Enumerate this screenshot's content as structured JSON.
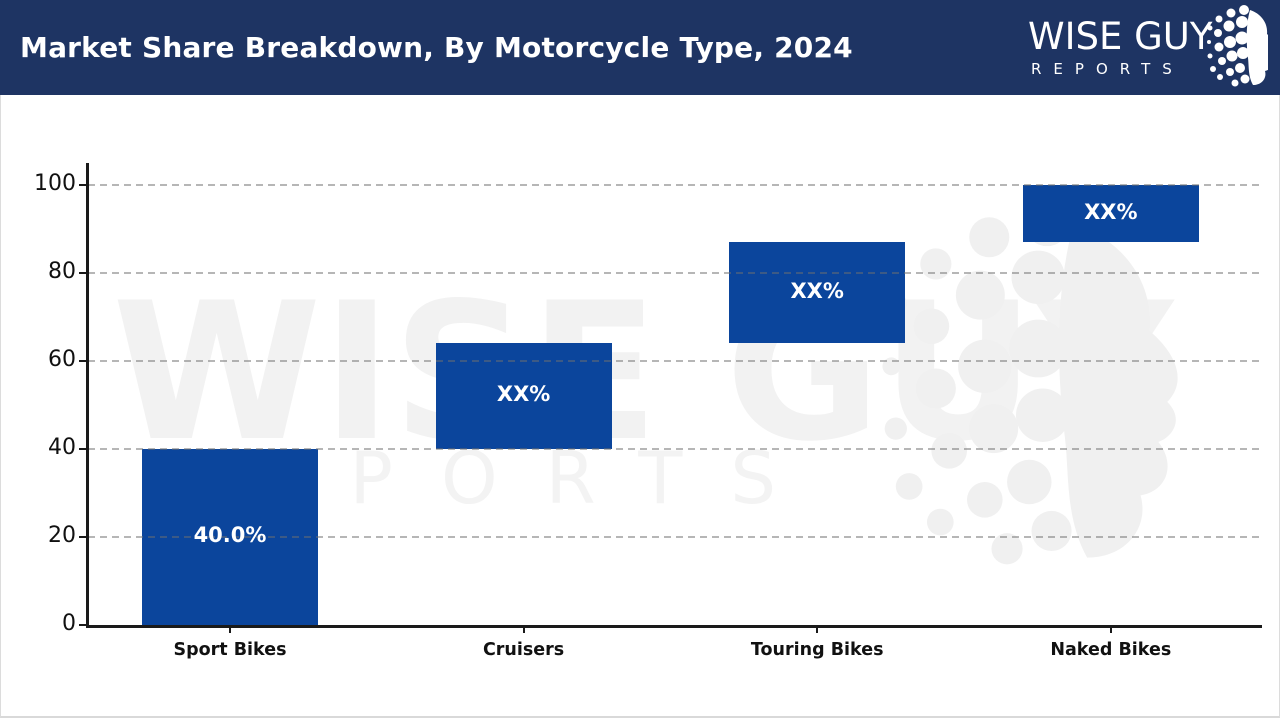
{
  "header": {
    "title": "Market Share Breakdown, By Motorcycle Type, 2024",
    "bg_color": "#1e3463",
    "logo": {
      "line1": "WISE GUY",
      "line2": "REPORTS"
    }
  },
  "watermark": {
    "line1": "WISE GUY",
    "line2": "REPORTS"
  },
  "chart_data": {
    "type": "bar",
    "subtype": "waterfall",
    "title": "Market Share Breakdown, By Motorcycle Type, 2024",
    "categories": [
      "Sport Bikes",
      "Cruisers",
      "Touring Bikes",
      "Naked Bikes"
    ],
    "bars": [
      {
        "category": "Sport Bikes",
        "start": 0,
        "end": 40,
        "value": 40,
        "label": "40.0%"
      },
      {
        "category": "Cruisers",
        "start": 40,
        "end": 64,
        "value": 24,
        "label": "XX%"
      },
      {
        "category": "Touring Bikes",
        "start": 64,
        "end": 87,
        "value": 23,
        "label": "XX%"
      },
      {
        "category": "Naked Bikes",
        "start": 87,
        "end": 100,
        "value": 13,
        "label": "XX%"
      }
    ],
    "yticks": [
      0,
      20,
      40,
      60,
      80,
      100
    ],
    "ylim": [
      0,
      105
    ],
    "xlabel": "",
    "ylabel": "",
    "legend": "none",
    "grid": "horizontal-dashed",
    "colors": {
      "bar": "#0b459c",
      "value_label": "#ffffff",
      "axis": "#1a1a1a",
      "tick_label": "#111111",
      "grid": "rgba(110,110,110,0.5)"
    }
  }
}
